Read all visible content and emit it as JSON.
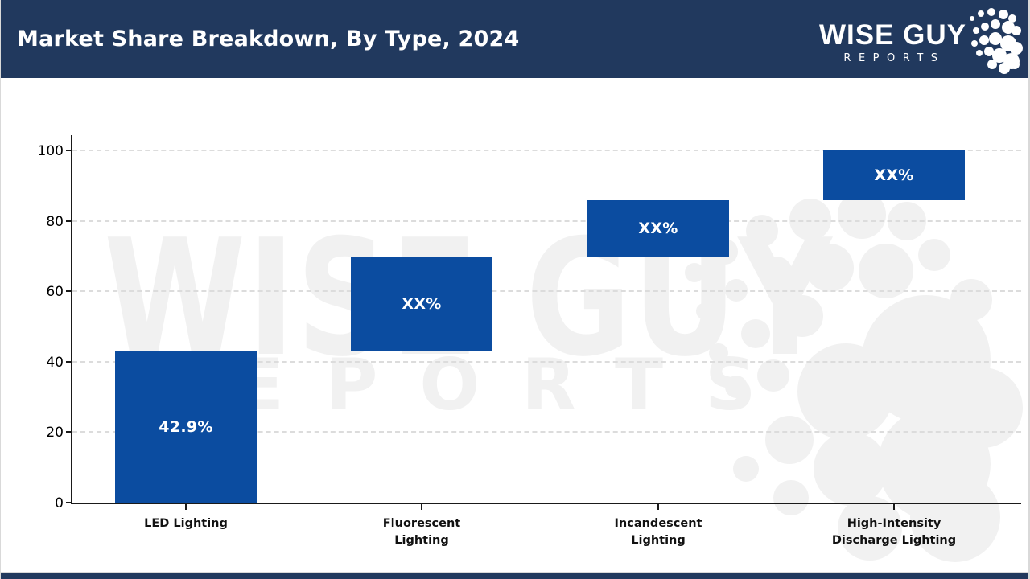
{
  "theme": {
    "navy": "#21395E",
    "bar_blue": "#0B4CA0",
    "grid_color": "#DCDCDC",
    "watermark_color": "#F1F1F1",
    "axis_color": "#1A1A1A"
  },
  "header": {
    "title": "Market Share Breakdown, By Type, 2024",
    "logo_line1": "WISE GUY",
    "logo_line2": "REPORTS"
  },
  "watermark": {
    "line1": "WISE GUY",
    "line2": "REPORTS"
  },
  "chart_data": {
    "type": "bar",
    "subtype": "waterfall",
    "title": "Market Share Breakdown, By Type, 2024",
    "categories": [
      "LED Lighting",
      "Fluorescent Lighting",
      "Incandescent Lighting",
      "High-Intensity Discharge Lighting"
    ],
    "category_lines": [
      [
        "LED Lighting"
      ],
      [
        "Fluorescent",
        "Lighting"
      ],
      [
        "Incandescent",
        "Lighting"
      ],
      [
        "High-Intensity",
        "Discharge Lighting"
      ]
    ],
    "segments": [
      {
        "category": "LED Lighting",
        "start": 0,
        "end": 42.9,
        "label": "42.9%"
      },
      {
        "category": "Fluorescent Lighting",
        "start": 42.9,
        "end": 69.8,
        "label": "XX%"
      },
      {
        "category": "Incandescent Lighting",
        "start": 69.8,
        "end": 85.9,
        "label": "XX%"
      },
      {
        "category": "High-Intensity Discharge Lighting",
        "start": 85.9,
        "end": 100,
        "label": "XX%"
      }
    ],
    "y_ticks": [
      0,
      20,
      40,
      60,
      80,
      100
    ],
    "ylim": [
      0,
      100
    ],
    "xlabel": "",
    "ylabel": "",
    "grid": "dashed-horizontal",
    "legend_position": "none"
  }
}
